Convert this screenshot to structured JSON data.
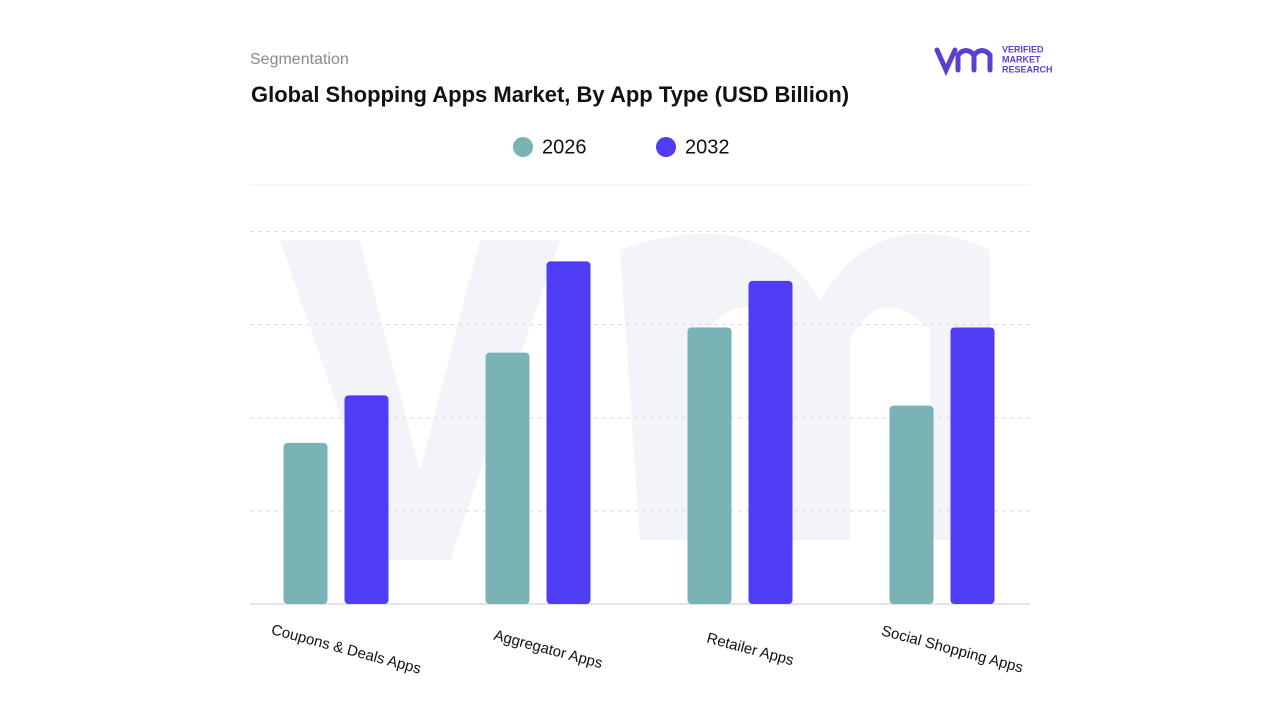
{
  "header": {
    "section": "Segmentation",
    "logo": [
      "VERIFIED",
      "MARKET",
      "RESEARCH"
    ]
  },
  "chart_data": {
    "type": "bar",
    "title": "Global Shopping Apps Market, By App Type (USD Billion)",
    "categories": [
      "Coupons & Deals Apps",
      "Aggregator Apps",
      "Retailer Apps",
      "Social Shopping Apps"
    ],
    "series": [
      {
        "name": "2026",
        "color": "#7ab3b5",
        "values": [
          1.73,
          2.7,
          2.97,
          2.13
        ]
      },
      {
        "name": "2032",
        "color": "#4f3cf5",
        "values": [
          2.24,
          3.68,
          3.47,
          2.97
        ]
      }
    ],
    "ylim": [
      0,
      4.5
    ],
    "grid_values": [
      1,
      2,
      3,
      4
    ],
    "grid": true
  }
}
